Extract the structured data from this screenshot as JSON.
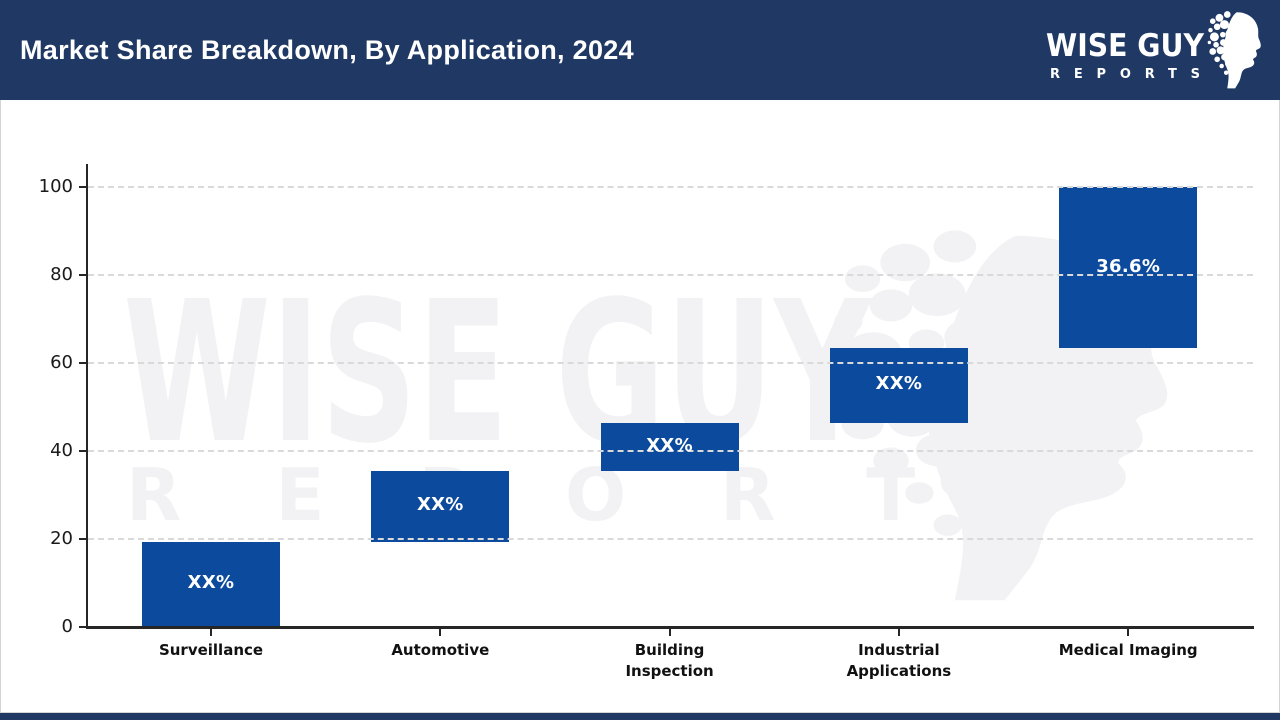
{
  "header": {
    "title": "Market Share Breakdown, By Application, 2024",
    "logo": {
      "name": "WISE GUY",
      "subname": "REPORTS"
    }
  },
  "watermark": {
    "line1": "WISE GUY",
    "line2": "REPORTS"
  },
  "colors": {
    "header_bg": "#1f3864",
    "footer_bg": "#1f3864",
    "bar": "#0c4a9d",
    "bar_label_text": "#ffffff",
    "axis": "#262626",
    "gridline": "#d9d9d9",
    "watermark": "#f2f2f4"
  },
  "chart_data": {
    "type": "bar",
    "variant": "waterfall",
    "title": "Market Share Breakdown, By Application, 2024",
    "categories": [
      "Surveillance",
      "Automotive",
      "Building\nInspection",
      "Industrial\nApplications",
      "Medical Imaging"
    ],
    "bars": [
      {
        "category": "Surveillance",
        "label": "XX%",
        "value": 19.4,
        "start": 0,
        "end": 19.4
      },
      {
        "category": "Automotive",
        "label": "XX%",
        "value": 16.1,
        "start": 19.4,
        "end": 35.5
      },
      {
        "category": "Building Inspection",
        "label": "XX%",
        "value": 10.9,
        "start": 35.5,
        "end": 46.4
      },
      {
        "category": "Industrial Applications",
        "label": "XX%",
        "value": 17.0,
        "start": 46.4,
        "end": 63.4
      },
      {
        "category": "Medical Imaging",
        "label": "36.6%",
        "value": 36.6,
        "start": 63.4,
        "end": 100
      }
    ],
    "xlabel": "",
    "ylabel": "",
    "ylim": [
      0,
      100
    ],
    "yticks": [
      0,
      20,
      40,
      60,
      80,
      100
    ],
    "grid": "horizontal-dashed",
    "legend": false
  }
}
